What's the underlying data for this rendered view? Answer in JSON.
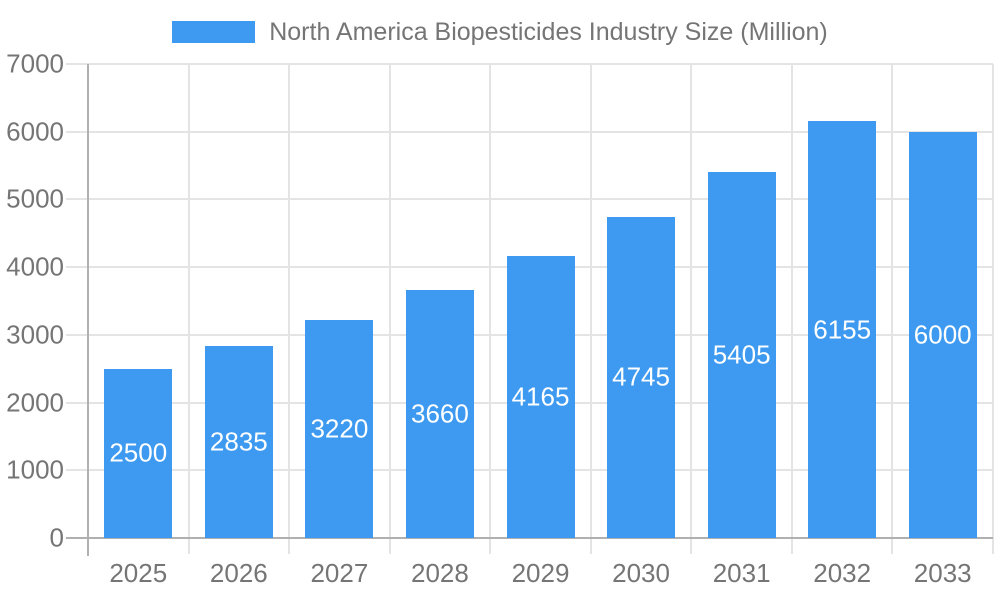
{
  "chart_data": {
    "type": "bar",
    "title": "North America Biopesticides Industry Size (Million)",
    "categories": [
      "2025",
      "2026",
      "2027",
      "2028",
      "2029",
      "2030",
      "2031",
      "2032",
      "2033"
    ],
    "series": [
      {
        "name": "North America Biopesticides Industry Size (Million)",
        "values": [
          2500,
          2835,
          3220,
          3660,
          4165,
          4745,
          5405,
          6155,
          6000
        ],
        "color": "#3D9AF0"
      }
    ],
    "value_labels": [
      "2500",
      "2835",
      "3220",
      "3660",
      "4165",
      "4745",
      "5405",
      "6155",
      "6000"
    ],
    "xlabel": "",
    "ylabel": "",
    "ylim": [
      0,
      7000
    ],
    "ytick_step": 1000,
    "yticks": [
      "0",
      "1000",
      "2000",
      "3000",
      "4000",
      "5000",
      "6000",
      "7000"
    ],
    "grid": true,
    "legend_position": "top"
  },
  "legend": {
    "label": "North America Biopesticides Industry Size (Million)",
    "swatch_color": "#3D9AF0"
  },
  "colors": {
    "bar": "#3D9AF0",
    "value_label_text": "#ffffff",
    "axis_text": "#757575",
    "gridline": "#e4e4e4",
    "axis_line": "#b0b0b0",
    "background": "#ffffff"
  }
}
